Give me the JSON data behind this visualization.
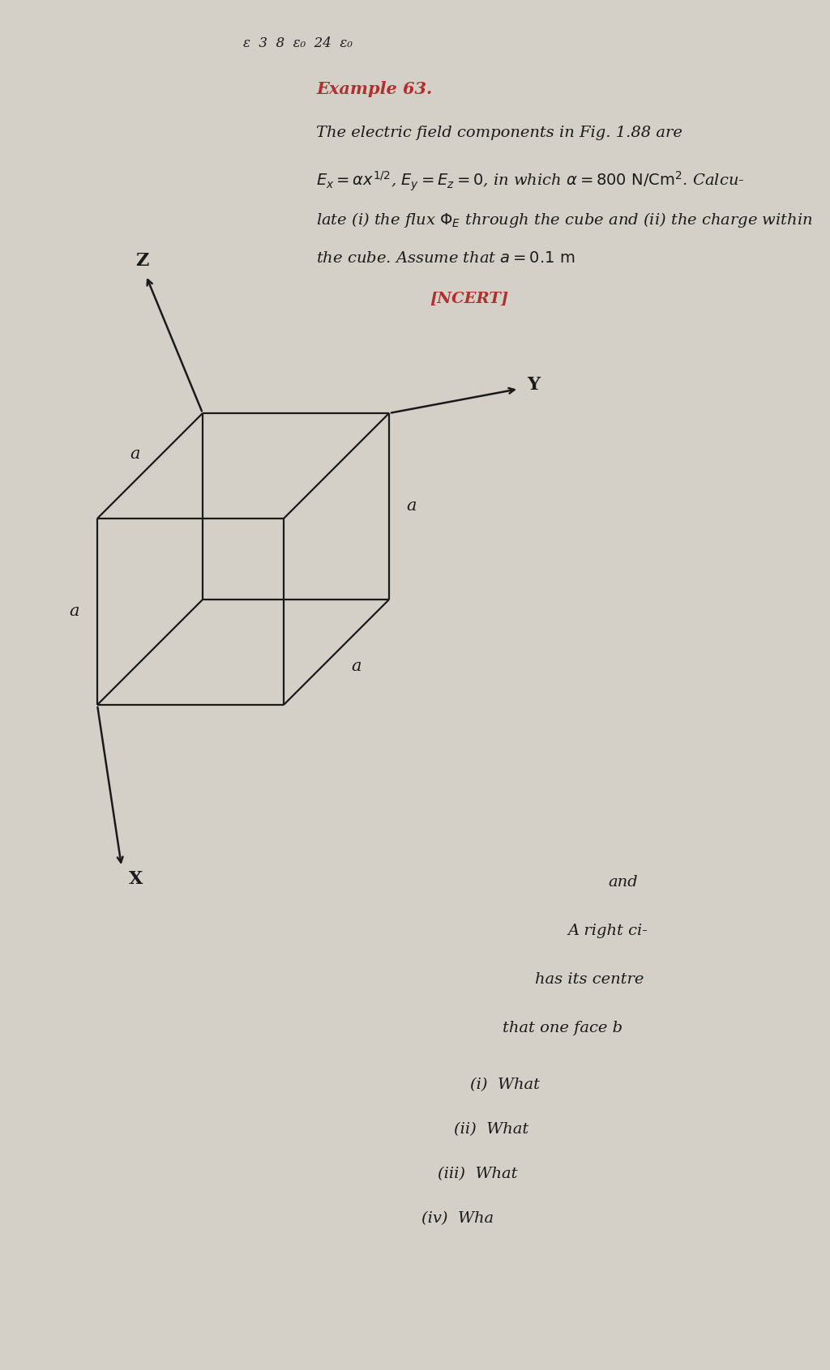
{
  "background_color": "#c8c4bc",
  "page_color": "#d4d0c8",
  "title_text": "Example 63.",
  "title_color": "#b03030",
  "header_text": "ε  3  8  ε₀  24  ε₀",
  "body_lines": [
    "The electric field components in Fig. 1.88 are",
    "$E_x = \\alpha x^{1/2}$, $E_y = E_z = 0$, in which $\\alpha = 800\\ \\mathrm{N / Cm^2}$. Calcu-",
    "late (i) the flux $\\Phi_E$ through the cube and (ii) the charge within",
    "the cube. Assume that $a = 0.1\\ \\mathrm{m}$"
  ],
  "ncert_text": "[NCERT]",
  "ncert_color": "#b03030",
  "bottom_and": "and",
  "bottom_lines": [
    "A right ci-",
    "has its centre",
    "that one face b"
  ],
  "bottom_list": [
    "(i)  What",
    "(ii)  What",
    "(iii)  What",
    "(iv)  Wha"
  ],
  "cube_color": "#1a1a1a",
  "label_color": "#1a1a1a",
  "font_size_body": 14,
  "font_size_label": 15,
  "font_size_axis": 16,
  "cube_lw": 1.6,
  "axis_lw": 1.8
}
